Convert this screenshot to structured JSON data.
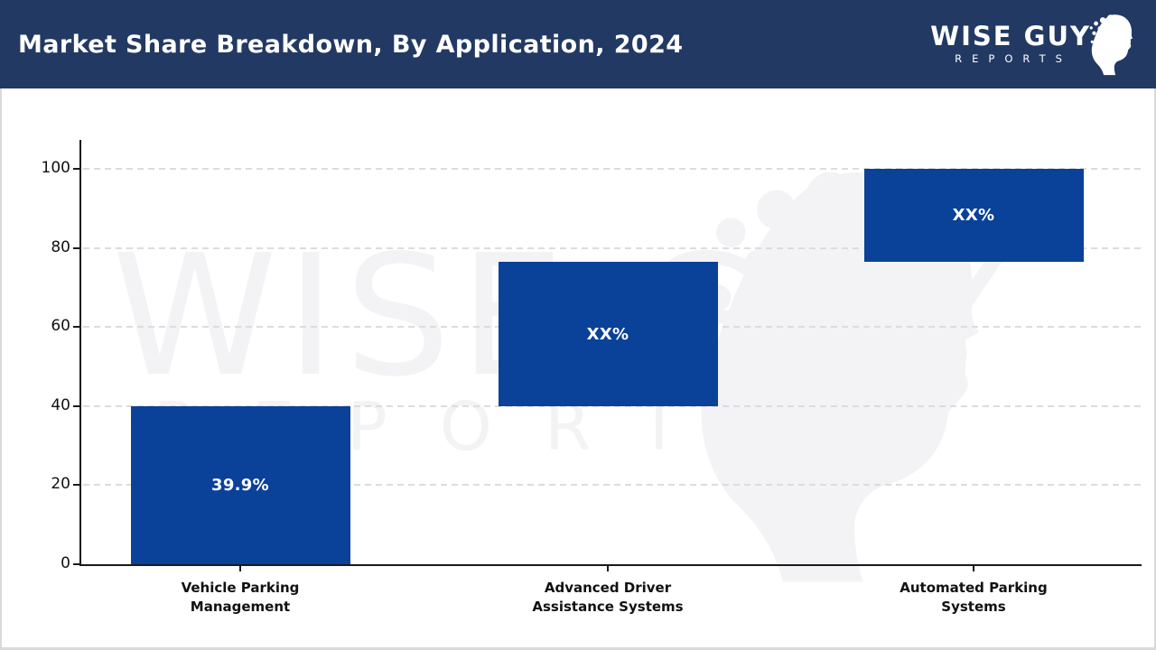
{
  "header": {
    "title": "Market Share Breakdown, By Application, 2024",
    "logo": {
      "line1": "WISE GUY",
      "line2": "REPORTS"
    }
  },
  "watermark": {
    "line1": "WISE GUY",
    "line2": "REPORTS"
  },
  "colors": {
    "header_bg": "#223963",
    "bar": "#0a4199",
    "bar_label": "#ffffff",
    "gridline": "#dcdcdc",
    "axis": "#1a1a1a",
    "watermark": "#f3f3f5",
    "border": "#d9d9d9"
  },
  "chart_data": {
    "type": "bar",
    "subtype": "waterfall-stacked-percent",
    "title": "Market Share Breakdown, By Application, 2024",
    "categories": [
      "Vehicle Parking\nManagement",
      "Advanced Driver\nAssistance Systems",
      "Automated Parking\nSystems"
    ],
    "segments": [
      {
        "category": "Vehicle Parking Management",
        "start": 0,
        "end": 39.9,
        "value": 39.9,
        "label": "39.9%"
      },
      {
        "category": "Advanced Driver Assistance Systems",
        "start": 39.9,
        "end": 76.4,
        "value": 36.5,
        "label": "XX%"
      },
      {
        "category": "Automated Parking Systems",
        "start": 76.4,
        "end": 100,
        "value": 23.6,
        "label": "XX%"
      }
    ],
    "xlabel": "",
    "ylabel": "",
    "ylim": [
      0,
      100
    ],
    "yticks": [
      0,
      20,
      40,
      60,
      80,
      100
    ],
    "grid": "horizontal-dashed",
    "legend": "none"
  }
}
